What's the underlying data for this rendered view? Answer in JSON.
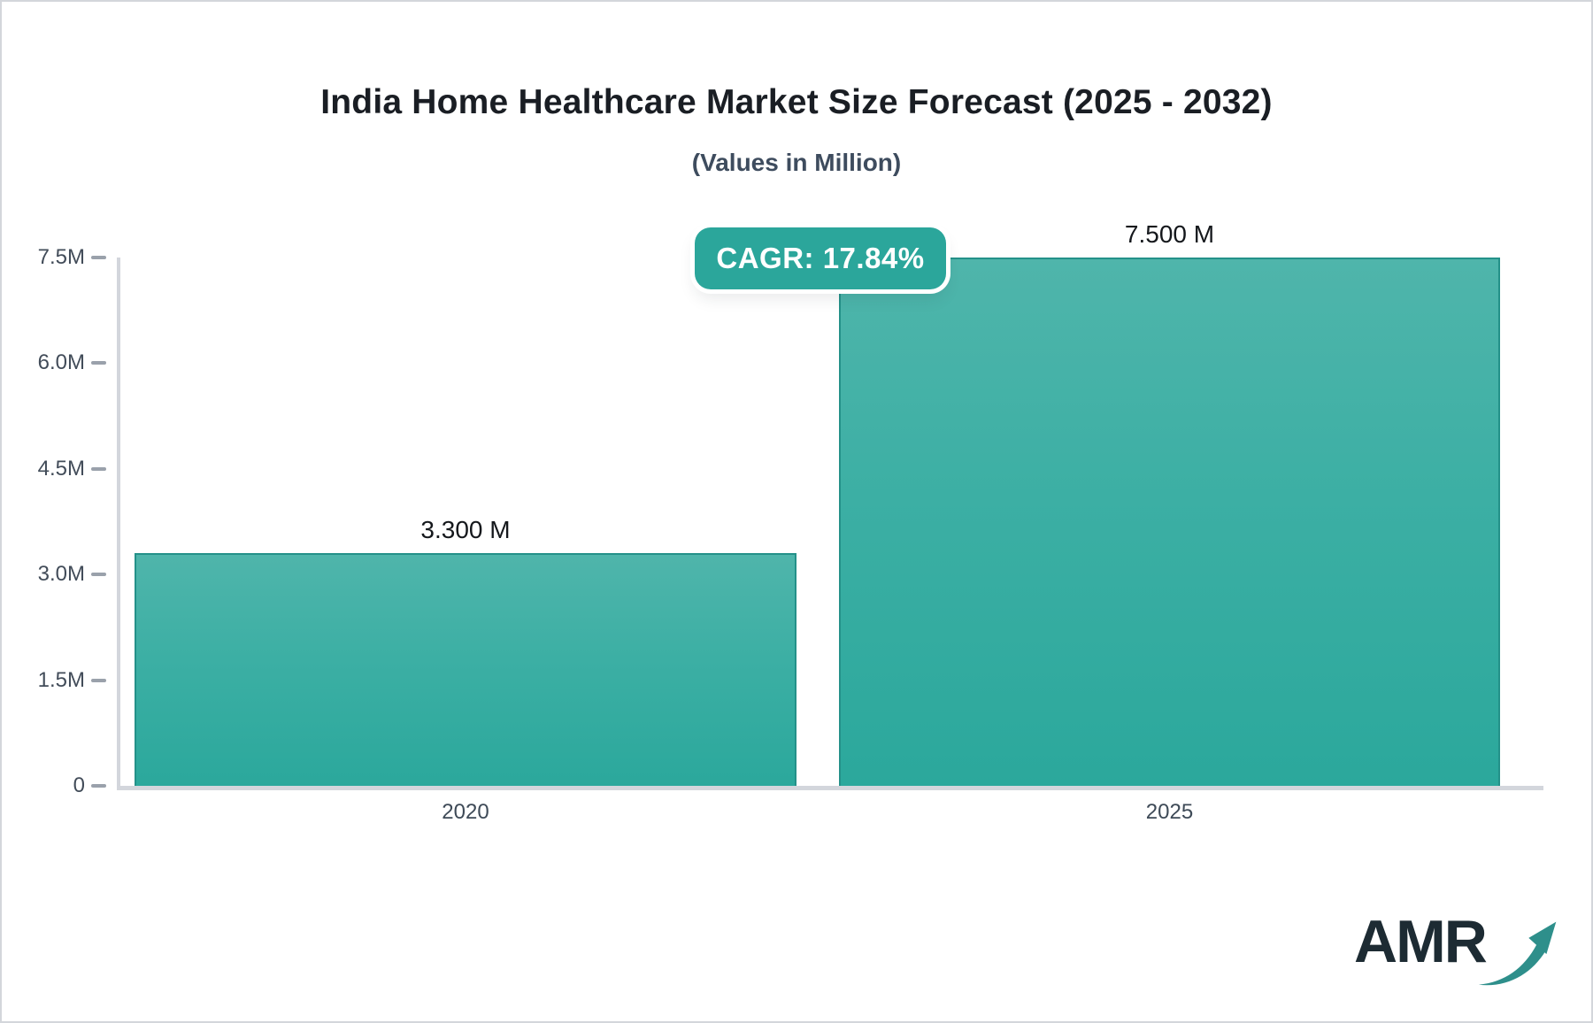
{
  "title": "India Home Healthcare Market Size Forecast (2025 - 2032)",
  "subtitle": "(Values in Million)",
  "cagr_badge": {
    "label": "CAGR: 17.84%",
    "value_pct": 17.84
  },
  "logo": {
    "text": "AMR",
    "arrow_icon": "growth-arrow-icon"
  },
  "colors": {
    "bar_gradient_top": "#4fb5ab",
    "bar_gradient_bottom": "#2ba89c",
    "bar_border": "#249189",
    "badge_background": "#2ba69b",
    "badge_text": "#ffffff",
    "axis_line": "#d3d6dc",
    "tick_mark": "#9aa1ab",
    "title_text": "#1a1e24",
    "subtitle_text": "#3e4c5e",
    "axis_label_text": "#424c59",
    "value_label_text": "#15181c",
    "logo_text": "#1d2b33",
    "logo_arrow": "#2e8f8b"
  },
  "chart_data": {
    "type": "bar",
    "title": "India Home Healthcare Market Size Forecast (2025 - 2032)",
    "subtitle": "(Values in Million)",
    "unit": "Million",
    "categories": [
      "2020",
      "2025"
    ],
    "values": [
      3.3,
      7.5
    ],
    "value_labels": [
      "3.300 M",
      "7.500 M"
    ],
    "cagr_label": "CAGR: 17.84%",
    "ylim": [
      0,
      7.5
    ],
    "yticks": [
      {
        "label": "7.5M",
        "value": 7.5
      },
      {
        "label": "6.0M",
        "value": 6.0
      },
      {
        "label": "4.5M",
        "value": 4.5
      },
      {
        "label": "3.0M",
        "value": 3.0
      },
      {
        "label": "1.5M",
        "value": 1.5
      },
      {
        "label": "0",
        "value": 0
      }
    ],
    "grid": false,
    "legend": false,
    "bar_orientation": "vertical"
  }
}
